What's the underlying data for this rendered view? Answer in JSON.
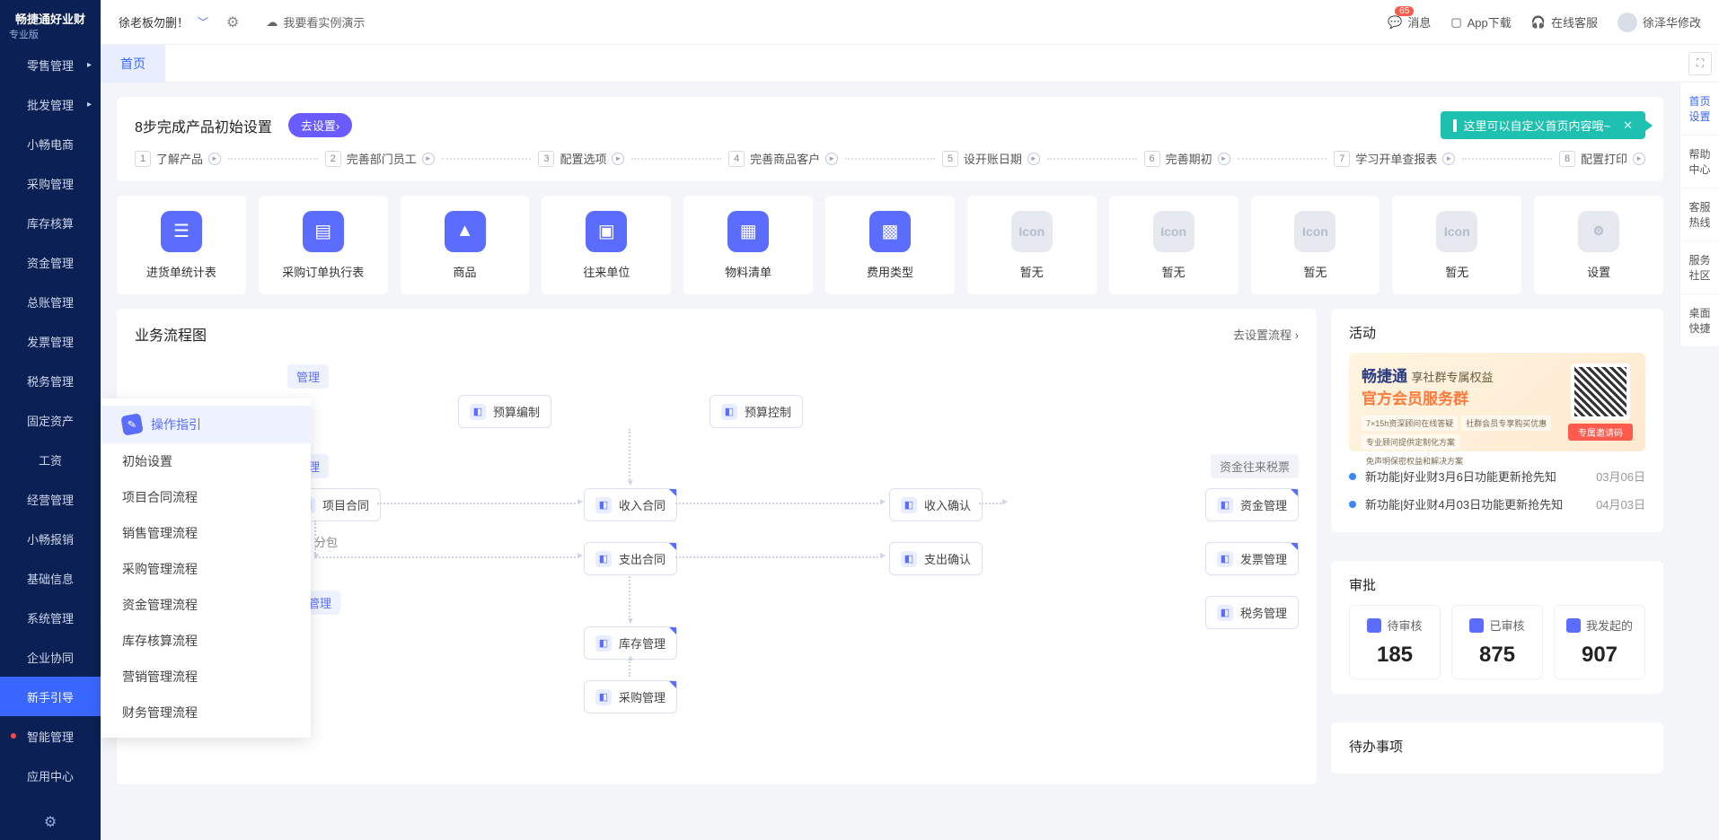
{
  "brand": {
    "name": "畅捷通好业财",
    "edition": "专业版"
  },
  "org": {
    "name": "徐老板勿删！",
    "demo": "我要看实例演示"
  },
  "topActions": {
    "msg": "消息",
    "msgBadge": "65",
    "app": "App下载",
    "cs": "在线客服",
    "user": "徐泽华修改"
  },
  "sidebar": [
    {
      "label": "零售管理",
      "sub": true
    },
    {
      "label": "批发管理",
      "sub": true
    },
    {
      "label": "小畅电商"
    },
    {
      "label": "采购管理"
    },
    {
      "label": "库存核算"
    },
    {
      "label": "资金管理"
    },
    {
      "label": "总账管理"
    },
    {
      "label": "发票管理"
    },
    {
      "label": "税务管理"
    },
    {
      "label": "固定资产"
    },
    {
      "label": "工资"
    },
    {
      "label": "经营管理"
    },
    {
      "label": "小畅报销"
    },
    {
      "label": "基础信息"
    },
    {
      "label": "系统管理"
    },
    {
      "label": "企业协同"
    },
    {
      "label": "新手引导",
      "active": true
    },
    {
      "label": "智能管理",
      "dot": true
    },
    {
      "label": "应用中心"
    }
  ],
  "tabs": [
    {
      "label": "首页",
      "active": true
    }
  ],
  "dock": [
    {
      "label": "首页设置",
      "active": true
    },
    {
      "label": "帮助中心"
    },
    {
      "label": "客服热线"
    },
    {
      "label": "服务社区"
    },
    {
      "label": "桌面快捷"
    }
  ],
  "setup": {
    "title": "8步完成产品初始设置",
    "goBtn": "去设置›",
    "tip": "这里可以自定义首页内容哦~",
    "steps": [
      {
        "n": "1",
        "t": "了解产品"
      },
      {
        "n": "2",
        "t": "完善部门员工"
      },
      {
        "n": "3",
        "t": "配置选项"
      },
      {
        "n": "4",
        "t": "完善商品客户"
      },
      {
        "n": "5",
        "t": "设开账日期"
      },
      {
        "n": "6",
        "t": "完善期初"
      },
      {
        "n": "7",
        "t": "学习开单查报表"
      },
      {
        "n": "8",
        "t": "配置打印"
      }
    ]
  },
  "tiles": [
    {
      "label": "进货单统计表",
      "icon": "list"
    },
    {
      "label": "采购订单执行表",
      "icon": "doc"
    },
    {
      "label": "商品",
      "icon": "bag"
    },
    {
      "label": "往来单位",
      "icon": "build"
    },
    {
      "label": "物料清单",
      "icon": "grid"
    },
    {
      "label": "费用类型",
      "icon": "calc"
    },
    {
      "label": "暂无",
      "grey": true
    },
    {
      "label": "暂无",
      "grey": true
    },
    {
      "label": "暂无",
      "grey": true
    },
    {
      "label": "暂无",
      "grey": true
    },
    {
      "label": "设置",
      "icon": "gear",
      "grey": true
    }
  ],
  "flow": {
    "title": "业务流程图",
    "link": "去设置流程 ›",
    "tags": {
      "budget": "管理",
      "proj": "管理",
      "supply": "链管理",
      "fin": "资金往来税票",
      "sub": "分包"
    },
    "nodes": {
      "budgetEdit": "预算编制",
      "budgetCtrl": "预算控制",
      "projContract": "项目合同",
      "incContract": "收入合同",
      "incConfirm": "收入确认",
      "fund": "资金管理",
      "outContract": "支出合同",
      "outConfirm": "支出确认",
      "invoice": "发票管理",
      "stock": "库存管理",
      "purchase": "采购管理",
      "tax": "税务管理"
    }
  },
  "popup": [
    {
      "label": "操作指引",
      "active": true
    },
    {
      "label": "初始设置"
    },
    {
      "label": "项目合同流程"
    },
    {
      "label": "销售管理流程"
    },
    {
      "label": "采购管理流程"
    },
    {
      "label": "资金管理流程"
    },
    {
      "label": "库存核算流程"
    },
    {
      "label": "营销管理流程"
    },
    {
      "label": "财务管理流程"
    }
  ],
  "activity": {
    "title": "活动",
    "banner": {
      "l1a": "畅捷通",
      "l1b": "享社群专属权益",
      "l2a": "官方会员",
      "l2b": "服务群",
      "chips": [
        "7×15h资深顾问在线答疑",
        "社群会员专享购买优惠",
        "专业顾问提供定制化方案",
        "免声明保密权益和解决方案"
      ],
      "qrLabel": "专属邀请码"
    },
    "news": [
      {
        "t": "新功能|好业财3月6日功能更新抢先知",
        "d": "03月06日"
      },
      {
        "t": "新功能|好业财4月03日功能更新抢先知",
        "d": "04月03日"
      }
    ]
  },
  "approval": {
    "title": "审批",
    "boxes": [
      {
        "h": "待审核",
        "n": "185"
      },
      {
        "h": "已审核",
        "n": "875"
      },
      {
        "h": "我发起的",
        "n": "907"
      }
    ]
  },
  "todo": {
    "title": "待办事项"
  }
}
